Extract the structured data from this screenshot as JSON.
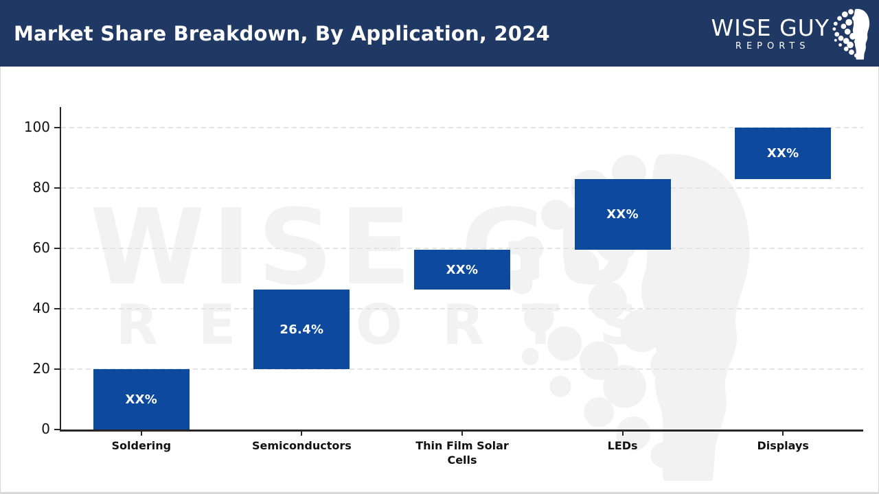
{
  "header": {
    "title": "Market Share Breakdown, By Application, 2024",
    "logo": {
      "line1": "WISE GUY",
      "line2": "REPORTS"
    },
    "bg_color": "#1f3864"
  },
  "watermark": {
    "line1": "WISE GUY",
    "line2": "REPORTS"
  },
  "chart_data": {
    "type": "bar",
    "subtype": "floating-waterfall",
    "title": "Market Share Breakdown, By Application, 2024",
    "categories": [
      "Soldering",
      "Semiconductors",
      "Thin Film Solar Cells",
      "LEDs",
      "Displays"
    ],
    "segments": [
      [
        0,
        20
      ],
      [
        20,
        46.4
      ],
      [
        46.4,
        59.5
      ],
      [
        59.5,
        83
      ],
      [
        83,
        100
      ]
    ],
    "values": [
      20,
      26.4,
      13.1,
      23.5,
      17
    ],
    "bar_labels": [
      "XX%",
      "26.4%",
      "XX%",
      "XX%",
      "XX%"
    ],
    "yticks": [
      0,
      20,
      40,
      60,
      80,
      100
    ],
    "ylim": [
      0,
      106
    ],
    "xlabel": "",
    "ylabel": "",
    "grid": "horizontal-dashed",
    "legend": "none",
    "bar_color": "#0d4a9e",
    "grid_color": "#e3e3e3",
    "axis_color": "#262626",
    "label_color": "#ffffff"
  }
}
